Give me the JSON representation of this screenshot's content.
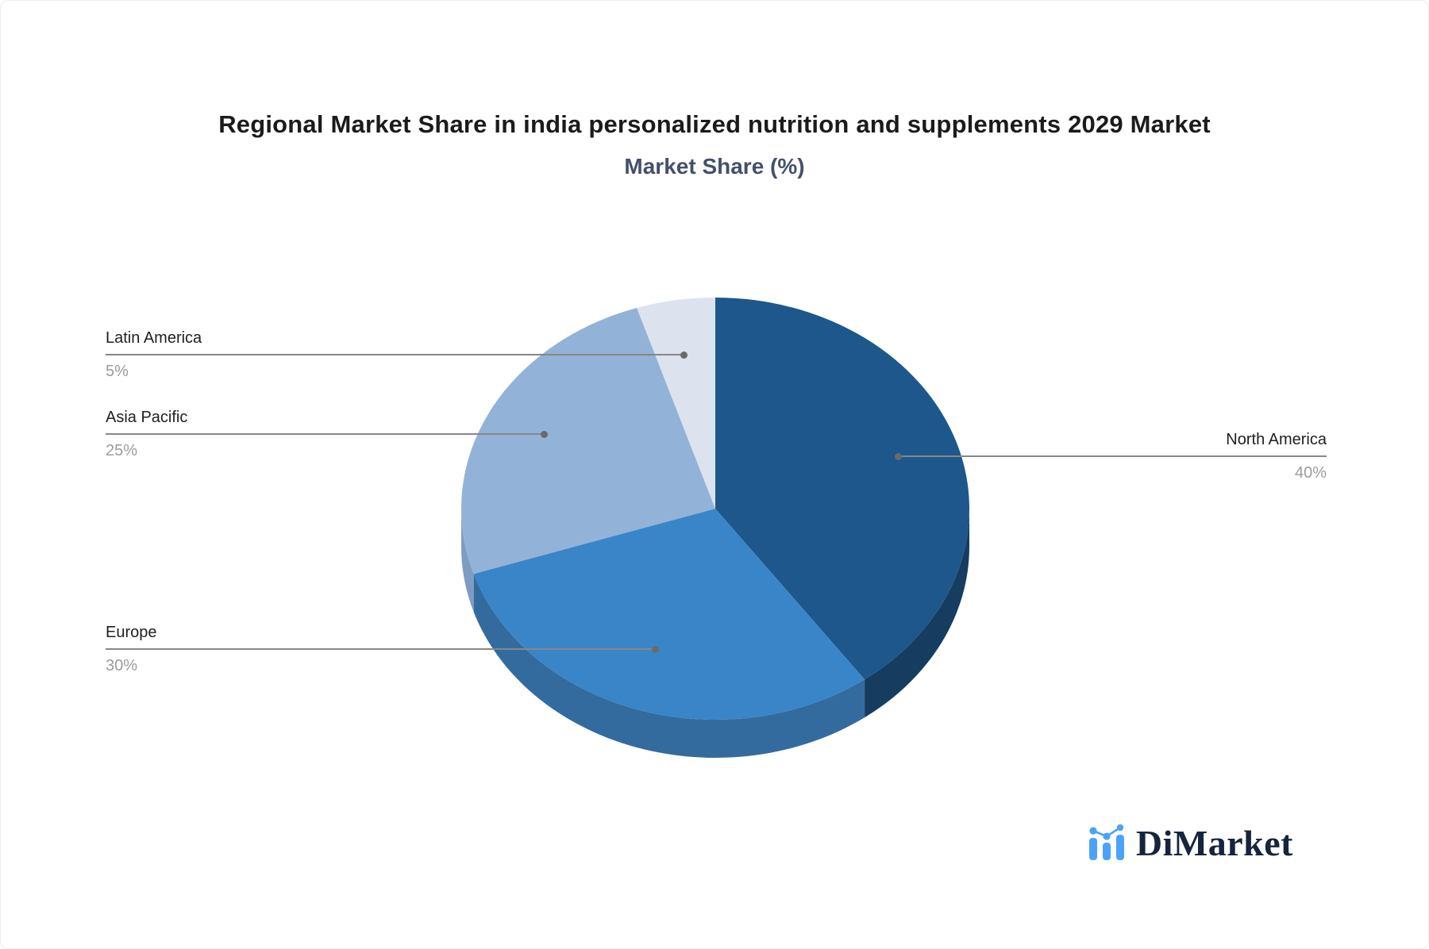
{
  "title": "Regional Market Share in india personalized nutrition and supplements 2029 Market",
  "subtitle": "Market Share (%)",
  "chart_data": {
    "type": "pie",
    "title": "Regional Market Share in india personalized nutrition and supplements 2029 Market",
    "subtitle": "Market Share (%)",
    "categories": [
      "North America",
      "Europe",
      "Asia Pacific",
      "Latin America"
    ],
    "values": [
      40,
      30,
      25,
      5
    ],
    "unit": "%",
    "direction": "clockwise",
    "start_angle": "12-o-clock",
    "effect": "3d-depth",
    "colors": [
      "#1d578b",
      "#3a85c8",
      "#93b2d7",
      "#dce3ef"
    ],
    "side_colors": [
      "#163c5f",
      "#336b9f",
      "#7e9cc2",
      null
    ],
    "leader_line_color": "#878787",
    "leader_dot_color": "#6a6a6a"
  },
  "labels": {
    "north_america": {
      "name": "North America",
      "value": "40%"
    },
    "europe": {
      "name": "Europe",
      "value": "30%"
    },
    "asia_pacific": {
      "name": "Asia Pacific",
      "value": "25%"
    },
    "latin_america": {
      "name": "Latin America",
      "value": "5%"
    }
  },
  "logo": {
    "text": "DiMarket",
    "icon": "bar-line-chart-icon",
    "icon_color": "#4ba3f7",
    "text_color": "#16243d"
  }
}
